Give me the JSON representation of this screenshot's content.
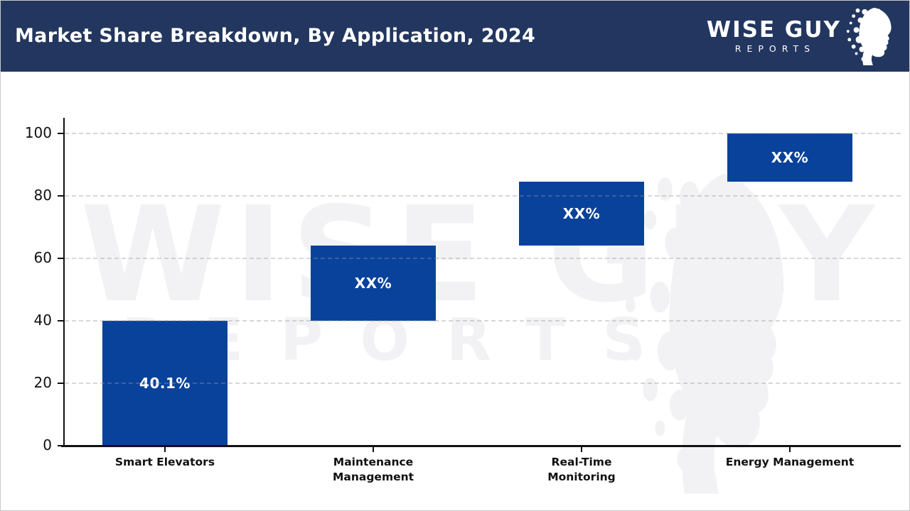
{
  "header": {
    "title": "Market Share Breakdown, By Application, 2024",
    "logo": {
      "line1": "WISE GUY",
      "line2": "REPORTS",
      "face_icon": "dotted-face-profile"
    }
  },
  "watermark": {
    "line1": "WISE GUY",
    "line2": "REPORTS",
    "face_icon": "dotted-face-profile"
  },
  "chart_data": {
    "type": "bar",
    "subtype": "waterfall",
    "title": "Market Share Breakdown, By Application, 2024",
    "categories": [
      "Smart Elevators",
      "Maintenance Management",
      "Real-Time Monitoring",
      "Energy Management"
    ],
    "category_label_lines": [
      [
        "Smart Elevators"
      ],
      [
        "Maintenance",
        "Management"
      ],
      [
        "Real-Time",
        "Monitoring"
      ],
      [
        "Energy Management"
      ]
    ],
    "series": [
      {
        "category": "Smart Elevators",
        "start": 0,
        "end": 40.1,
        "value_label": "40.1%"
      },
      {
        "category": "Maintenance Management",
        "start": 40.1,
        "end": 64.2,
        "value_label": "XX%"
      },
      {
        "category": "Real-Time Monitoring",
        "start": 64.2,
        "end": 84.5,
        "value_label": "XX%"
      },
      {
        "category": "Energy Management",
        "start": 84.5,
        "end": 100,
        "value_label": "XX%"
      }
    ],
    "ylim": [
      0,
      100
    ],
    "yticks": [
      0,
      20,
      40,
      60,
      80,
      100
    ],
    "xlabel": "",
    "ylabel": "",
    "grid": "horizontal-dashed",
    "legend": "none",
    "bar_color": "#09429b",
    "value_label_color": "#ffffff"
  },
  "colors": {
    "header_bg": "#22365f",
    "bar": "#09429b",
    "axis": "#111111",
    "watermark": "#f2f2f4",
    "card_border": "#c9c9c9",
    "title_text": "#ffffff"
  }
}
